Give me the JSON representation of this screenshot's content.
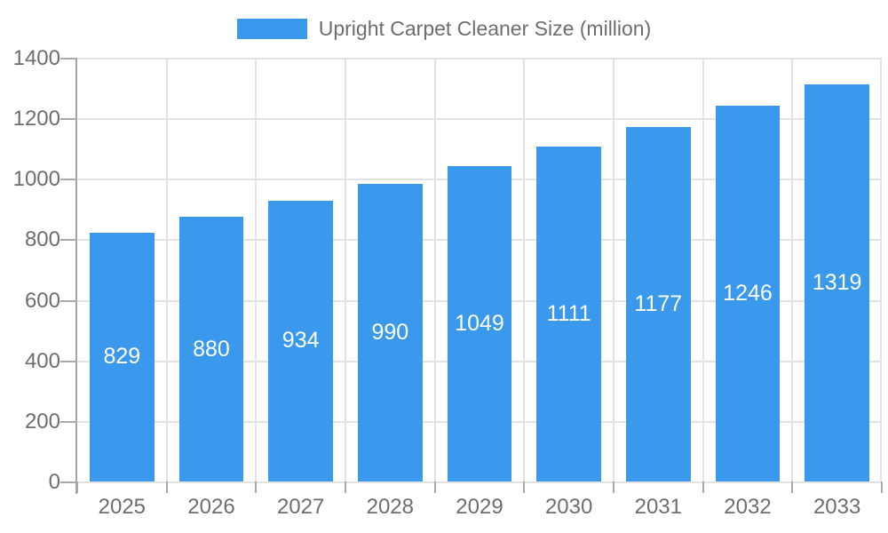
{
  "chart_data": {
    "type": "bar",
    "title": "Upright Carpet Cleaner Size (million)",
    "legend_position": "top",
    "categories": [
      "2025",
      "2026",
      "2027",
      "2028",
      "2029",
      "2030",
      "2031",
      "2032",
      "2033"
    ],
    "series": [
      {
        "name": "Upright Carpet Cleaner Size (million)",
        "values": [
          829,
          880,
          934,
          990,
          1049,
          1111,
          1177,
          1246,
          1319
        ]
      }
    ],
    "xlabel": "",
    "ylabel": "",
    "ylim": [
      0,
      1400
    ],
    "y_ticks": [
      0,
      200,
      400,
      600,
      800,
      1000,
      1200,
      1400
    ],
    "grid": "on",
    "value_labels": "centered-inside-bars",
    "colors": {
      "bar": "#3A99EC",
      "bar_value_text": "#FFFFFF",
      "tick_text": "#6E6E6E",
      "legend_text": "#6E6E6E",
      "axis_line": "#A5A5A5",
      "tick_mark": "#A9A9A9",
      "grid_line": "#E3E3E3",
      "background": "#FFFFFF"
    }
  }
}
